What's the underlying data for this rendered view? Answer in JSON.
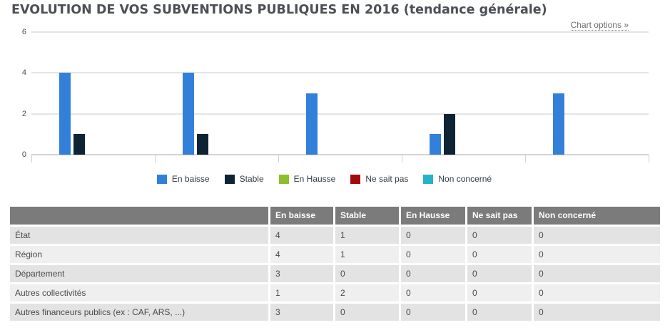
{
  "title": "EVOLUTION DE VOS SUBVENTIONS PUBLIQUES EN 2016 (tendance générale)",
  "chart_options_label": "Chart options »",
  "chart_data": {
    "type": "bar",
    "title": "EVOLUTION DE VOS SUBVENTIONS PUBLIQUES EN 2016 (tendance générale)",
    "categories": [
      "État",
      "Région",
      "Département",
      "Autres collectivités",
      "Autres financeurs publics (ex : CAF, ARS, ...)"
    ],
    "series": [
      {
        "name": "En baisse",
        "color": "#3380db",
        "values": [
          4,
          4,
          3,
          1,
          3
        ]
      },
      {
        "name": "Stable",
        "color": "#0e2435",
        "values": [
          1,
          1,
          0,
          2,
          0
        ]
      },
      {
        "name": "En Hausse",
        "color": "#8dbe2b",
        "values": [
          0,
          0,
          0,
          0,
          0
        ]
      },
      {
        "name": "Ne sait pas",
        "color": "#a00c0e",
        "values": [
          0,
          0,
          0,
          0,
          0
        ]
      },
      {
        "name": "Non concerné",
        "color": "#28b2c6",
        "values": [
          0,
          0,
          0,
          0,
          0
        ]
      }
    ],
    "xlabel": "",
    "ylabel": "",
    "ylim": [
      0,
      6
    ],
    "yticks": [
      0,
      2,
      4,
      6
    ],
    "grid": true,
    "legend_position": "bottom",
    "x_axis_category_labels_shown": false
  },
  "table": {
    "columns": [
      "",
      "En baisse",
      "Stable",
      "En Hausse",
      "Ne sait pas",
      "Non concerné"
    ],
    "rows": [
      {
        "label": "État",
        "values": [
          4,
          1,
          0,
          0,
          0
        ]
      },
      {
        "label": "Région",
        "values": [
          4,
          1,
          0,
          0,
          0
        ]
      },
      {
        "label": "Département",
        "values": [
          3,
          0,
          0,
          0,
          0
        ]
      },
      {
        "label": "Autres collectivités",
        "values": [
          1,
          2,
          0,
          0,
          0
        ]
      },
      {
        "label": "Autres financeurs publics (ex : CAF, ARS, ...)",
        "values": [
          3,
          0,
          0,
          0,
          0
        ]
      }
    ]
  }
}
